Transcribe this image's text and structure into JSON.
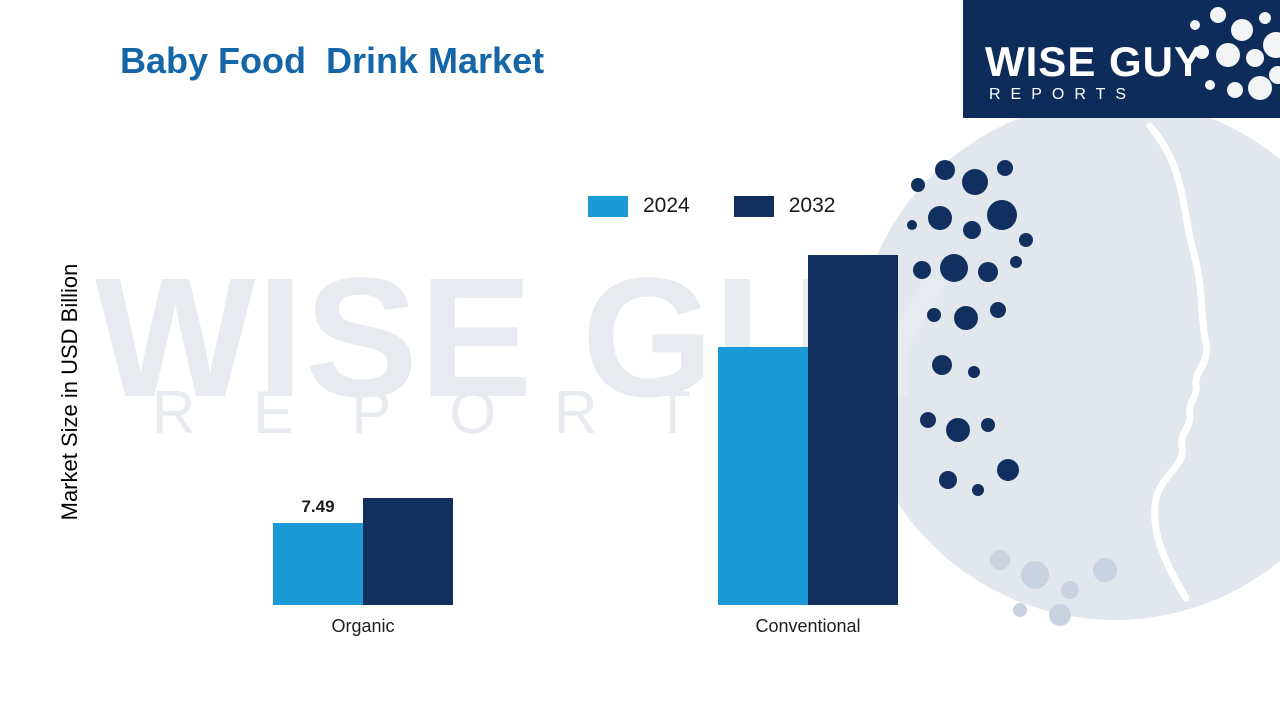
{
  "title": "Baby Food  Drink Market",
  "logo": {
    "name": "WISE GUY",
    "sub": "REPORTS"
  },
  "watermark": {
    "name": "WISE GUY",
    "sub": "REPORTS"
  },
  "colors": {
    "title_blue": "#1565a9",
    "panel_navy": "#0e2c5a",
    "watermark_gray": "#e7eaef",
    "face_gray": "#e2e7ee",
    "bar_2024": "#1b9ad7",
    "bar_2032": "#112e5c"
  },
  "chart_data": {
    "type": "bar",
    "title": "Baby Food  Drink Market",
    "categories": [
      "Organic",
      "Conventional"
    ],
    "series": [
      {
        "name": "2024",
        "color": "#1b9ad7",
        "values": [
          7.49,
          23.6
        ]
      },
      {
        "name": "2032",
        "color": "#112e5c",
        "values": [
          9.8,
          32.0
        ]
      }
    ],
    "xlabel": "",
    "ylabel": "Market Size in USD Billion",
    "ylim": [
      0,
      35
    ],
    "grid": false,
    "axes_visible": false,
    "legend_position": "top-right",
    "data_labels": [
      {
        "category_index": 0,
        "series_index": 0,
        "text": "7.49"
      }
    ]
  }
}
